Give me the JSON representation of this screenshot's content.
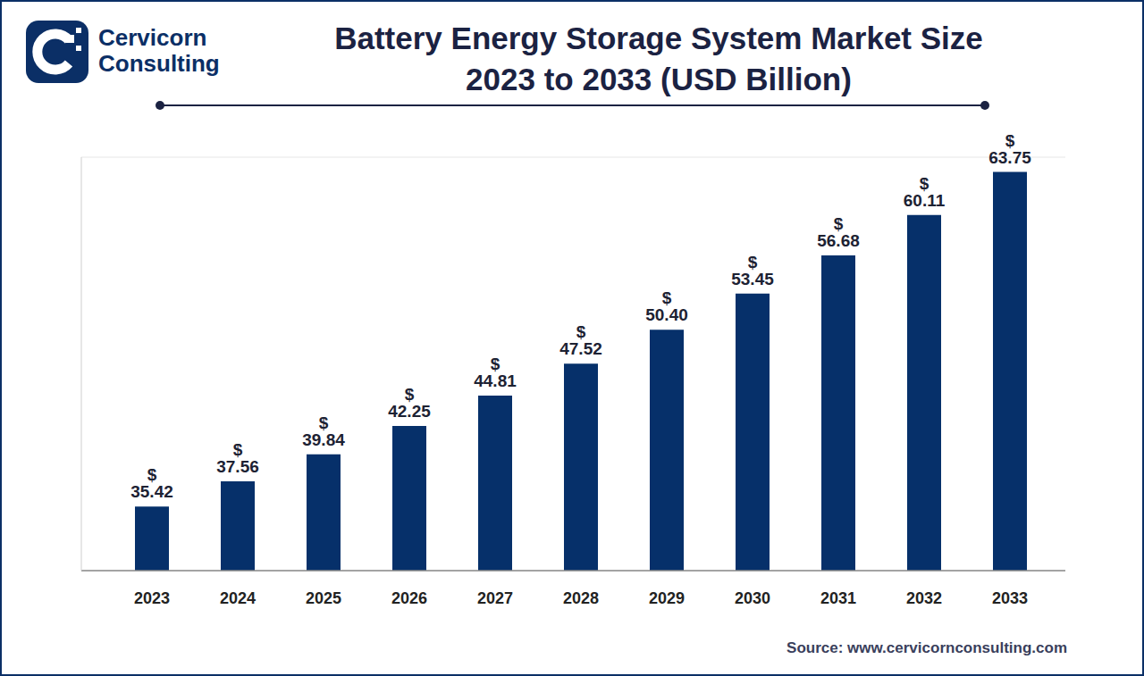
{
  "chart_data": {
    "type": "bar",
    "title": "Battery Energy Storage System Market Size",
    "subtitle": "2023 to 2033 (USD Billion)",
    "logo_text": [
      "Cervicorn",
      "Consulting"
    ],
    "source": "Source: www.cervicornconsulting.com",
    "categories": [
      "2023",
      "2024",
      "2025",
      "2026",
      "2027",
      "2028",
      "2029",
      "2030",
      "2031",
      "2032",
      "2033"
    ],
    "values": [
      35.42,
      37.56,
      39.84,
      42.25,
      44.81,
      47.52,
      50.4,
      53.45,
      56.68,
      60.11,
      63.75
    ],
    "value_labels": [
      "$ 35.42",
      "$ 37.56",
      "$ 39.84",
      "$ 42.25",
      "$ 44.81",
      "$ 47.52",
      "$ 50.40",
      "$ 53.45",
      "$ 56.68",
      "$ 60.11",
      "$ 63.75"
    ],
    "color": "#06306a",
    "ylim": [
      30,
      65
    ],
    "yticks": [
      30,
      33.5,
      37,
      40.5,
      44,
      47.5,
      51,
      54.5,
      58,
      61.5,
      65
    ],
    "grid": true,
    "data_labels": true,
    "tick_labels": "x"
  }
}
